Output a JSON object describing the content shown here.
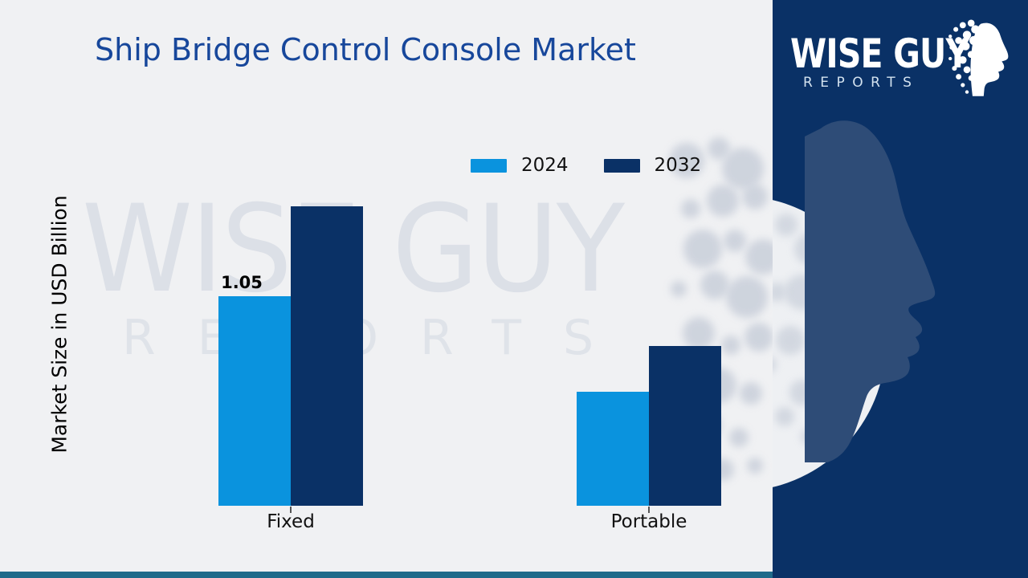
{
  "page": {
    "title": "Ship Bridge Control Console Market"
  },
  "brand": {
    "name": "WISE GUY",
    "sub": "REPORTS"
  },
  "watermark": {
    "line1": "WISE GUY",
    "line2": "REPORTS"
  },
  "colors": {
    "background": "#f0f1f3",
    "title_blue": "#17479b",
    "panel_navy": "#0a3166",
    "face_navy": "#2e4c77",
    "circle_light": "#eef0f3",
    "teal_accent": "#1f6a8a",
    "watermark_gray": "#dce0e7",
    "bar_2024": "#0a93de",
    "bar_2032": "#0a3166"
  },
  "chart_data": {
    "type": "bar",
    "title": "Ship Bridge Control Console Market",
    "categories": [
      "Fixed",
      "Portable"
    ],
    "series": [
      {
        "name": "2024",
        "color": "#0a93de",
        "values": [
          1.05,
          0.57
        ],
        "value_labels": [
          "1.05",
          ""
        ]
      },
      {
        "name": "2032",
        "color": "#0a3166",
        "values": [
          1.5,
          0.8
        ],
        "value_labels": [
          "",
          ""
        ]
      }
    ],
    "xlabel": "",
    "ylabel": "Market Size in USD Billion",
    "ylim": [
      0,
      1.6
    ],
    "grid": false,
    "y_ticks_visible": false,
    "legend_position": "top-center"
  }
}
